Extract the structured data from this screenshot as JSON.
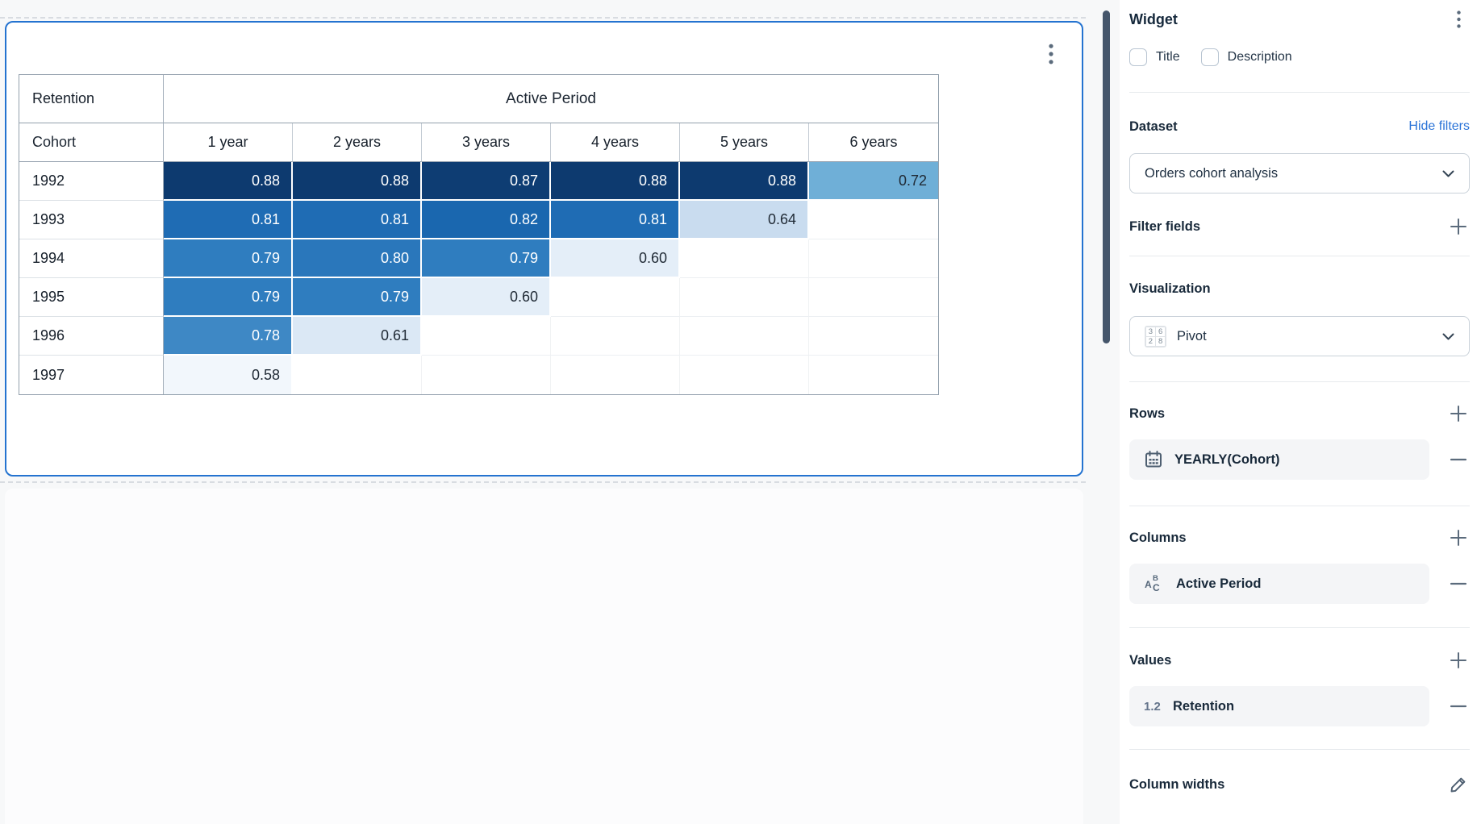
{
  "canvas": {
    "table": {
      "corner_label": "Retention",
      "group_label": "Active Period",
      "row_dim_label": "Cohort",
      "col_headers": [
        "1 year",
        "2 years",
        "3 years",
        "4 years",
        "5 years",
        "6 years"
      ],
      "rows": [
        {
          "label": "1992",
          "cells": [
            {
              "v": "0.88",
              "bg": "#0d3a6f",
              "fg": "#ffffff"
            },
            {
              "v": "0.88",
              "bg": "#0d3a6f",
              "fg": "#ffffff"
            },
            {
              "v": "0.87",
              "bg": "#0e3d73",
              "fg": "#ffffff"
            },
            {
              "v": "0.88",
              "bg": "#0d3a6f",
              "fg": "#ffffff"
            },
            {
              "v": "0.88",
              "bg": "#0d3a6f",
              "fg": "#ffffff"
            },
            {
              "v": "0.72",
              "bg": "#6fafd7",
              "fg": "#212b36"
            }
          ]
        },
        {
          "label": "1993",
          "cells": [
            {
              "v": "0.81",
              "bg": "#1f6cb4",
              "fg": "#ffffff"
            },
            {
              "v": "0.81",
              "bg": "#1f6cb4",
              "fg": "#ffffff"
            },
            {
              "v": "0.82",
              "bg": "#1a67af",
              "fg": "#ffffff"
            },
            {
              "v": "0.81",
              "bg": "#1f6cb4",
              "fg": "#ffffff"
            },
            {
              "v": "0.64",
              "bg": "#c9dcef",
              "fg": "#212b36"
            },
            null
          ]
        },
        {
          "label": "1994",
          "cells": [
            {
              "v": "0.79",
              "bg": "#2f7dbf",
              "fg": "#ffffff"
            },
            {
              "v": "0.80",
              "bg": "#2a77bb",
              "fg": "#ffffff"
            },
            {
              "v": "0.79",
              "bg": "#2f7dbf",
              "fg": "#ffffff"
            },
            {
              "v": "0.60",
              "bg": "#e4eef8",
              "fg": "#212b36"
            },
            null,
            null
          ]
        },
        {
          "label": "1995",
          "cells": [
            {
              "v": "0.79",
              "bg": "#2f7dbf",
              "fg": "#ffffff"
            },
            {
              "v": "0.79",
              "bg": "#2f7dbf",
              "fg": "#ffffff"
            },
            {
              "v": "0.60",
              "bg": "#e4eef8",
              "fg": "#212b36"
            },
            null,
            null,
            null
          ]
        },
        {
          "label": "1996",
          "cells": [
            {
              "v": "0.78",
              "bg": "#3e88c5",
              "fg": "#ffffff"
            },
            {
              "v": "0.61",
              "bg": "#dbe8f5",
              "fg": "#212b36"
            },
            null,
            null,
            null,
            null
          ]
        },
        {
          "label": "1997",
          "cells": [
            {
              "v": "0.58",
              "bg": "#f2f7fc",
              "fg": "#212b36"
            },
            null,
            null,
            null,
            null,
            null
          ]
        }
      ]
    }
  },
  "chart_data": {
    "type": "heatmap",
    "title": "Retention",
    "column_group": "Active Period",
    "row_dimension": "Cohort",
    "columns": [
      "1 year",
      "2 years",
      "3 years",
      "4 years",
      "5 years",
      "6 years"
    ],
    "rows": [
      "1992",
      "1993",
      "1994",
      "1995",
      "1996",
      "1997"
    ],
    "values": [
      [
        0.88,
        0.88,
        0.87,
        0.88,
        0.88,
        0.72
      ],
      [
        0.81,
        0.81,
        0.82,
        0.81,
        0.64,
        null
      ],
      [
        0.79,
        0.8,
        0.79,
        0.6,
        null,
        null
      ],
      [
        0.79,
        0.79,
        0.6,
        null,
        null,
        null
      ],
      [
        0.78,
        0.61,
        null,
        null,
        null,
        null
      ],
      [
        0.58,
        null,
        null,
        null,
        null,
        null
      ]
    ],
    "color_scale": {
      "low": "#f2f7fc",
      "high": "#0d3a6f"
    }
  },
  "panel": {
    "title": "Widget",
    "checkboxes": {
      "title_label": "Title",
      "description_label": "Description"
    },
    "dataset": {
      "heading": "Dataset",
      "link_label": "Hide filters",
      "selected": "Orders cohort analysis"
    },
    "filter_fields": {
      "heading": "Filter fields"
    },
    "visualization": {
      "heading": "Visualization",
      "selected": "Pivot",
      "icon_numbers": {
        "tl": "3",
        "tr": "6",
        "bl": "2",
        "br": "8"
      }
    },
    "rows_section": {
      "heading": "Rows",
      "item": {
        "label": "YEARLY(Cohort)",
        "icon": "calendar-icon"
      }
    },
    "columns_section": {
      "heading": "Columns",
      "item": {
        "label": "Active Period",
        "icon": "text-abc-icon",
        "icon_letters": {
          "a": "A",
          "b": "B",
          "c": "C"
        }
      }
    },
    "values_section": {
      "heading": "Values",
      "item": {
        "label": "Retention",
        "icon": "numeric-icon",
        "icon_text": "1.2"
      }
    },
    "column_widths": {
      "heading": "Column widths"
    }
  },
  "colors": {
    "accent_blue": "#2473d0",
    "link_blue": "#2b74d8",
    "slate_icon": "#5b6b7c",
    "scrollbar": "#45566b",
    "canvas_bg": "#f7f8f9",
    "chip_bg": "#f4f5f7"
  }
}
